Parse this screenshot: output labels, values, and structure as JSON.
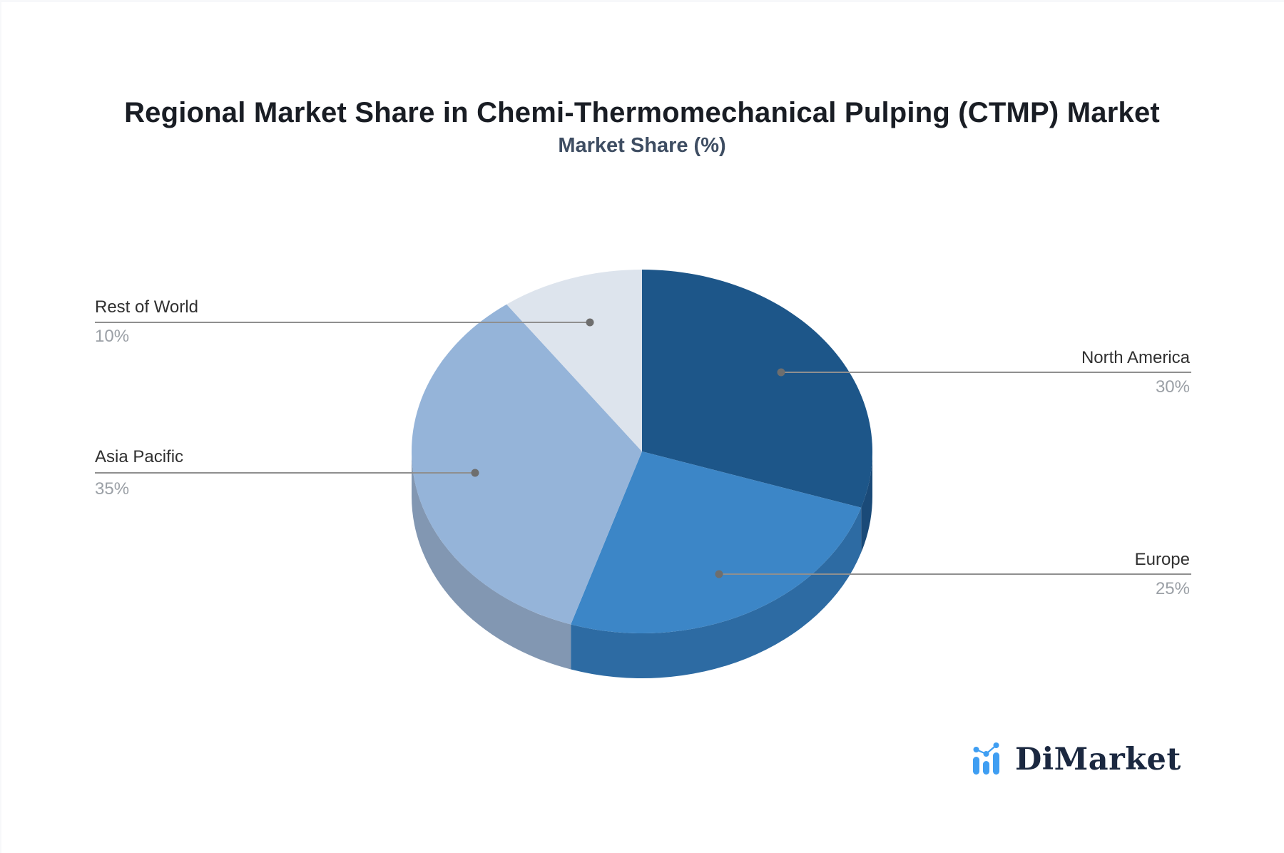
{
  "page": {
    "background": "#ffffff",
    "top_edge_color": "#f7f8fa",
    "left_edge_color": "#f7f8fa"
  },
  "chart_data": {
    "type": "pie",
    "style": "3d-pie",
    "title": "Regional Market Share in Chemi-Thermomechanical Pulping (CTMP) Market",
    "subtitle": "Market Share (%)",
    "unit": "%",
    "start_angle": "12-oclock-clockwise",
    "legend": "none",
    "slices": [
      {
        "label": "North America",
        "value": 30,
        "pct_label": "30%",
        "color": "#1d5689",
        "side_color": "#1a4a78",
        "label_side": "right"
      },
      {
        "label": "Europe",
        "value": 25,
        "pct_label": "25%",
        "color": "#3c86c7",
        "side_color": "#2d6ba3",
        "label_side": "right"
      },
      {
        "label": "Asia Pacific",
        "value": 35,
        "pct_label": "35%",
        "color": "#95b4d9",
        "side_color": "#8297b2",
        "label_side": "left"
      },
      {
        "label": "Rest of World",
        "value": 10,
        "pct_label": "10%",
        "color": "#dde4ed",
        "side_color": "#bcc6d4",
        "label_side": "left"
      }
    ],
    "leader_line_color": "#8f8f8f",
    "leader_dot_color": "#6e6e6e",
    "label_text_color": "#303030",
    "pct_text_color": "#9ba0a6",
    "title_color": "#191d24",
    "subtitle_color": "#3e4d62"
  },
  "branding": {
    "logo_text": "DiMarket",
    "logo_icon": "bar-line-chart-icon",
    "logo_icon_color": "#3f9ef2",
    "logo_text_color": "#1b2840"
  }
}
